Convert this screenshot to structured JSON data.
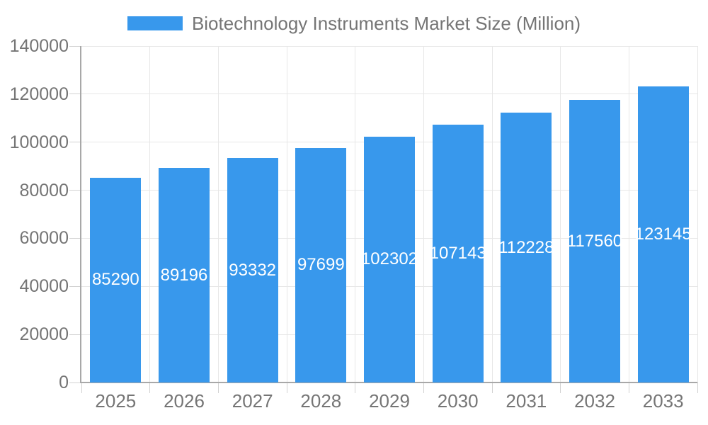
{
  "chart_data": {
    "type": "bar",
    "title": "Biotechnology Instruments Market Size (Million)",
    "legend": {
      "position": "top",
      "entries": [
        "Biotechnology Instruments Market Size (Million)"
      ]
    },
    "categories": [
      "2025",
      "2026",
      "2027",
      "2028",
      "2029",
      "2030",
      "2031",
      "2032",
      "2033"
    ],
    "values": [
      85290,
      89196,
      93332,
      97699,
      102302,
      107143,
      112228,
      117560,
      123145
    ],
    "xlabel": "",
    "ylabel": "",
    "ylim": [
      0,
      140000
    ],
    "yticks": [
      0,
      20000,
      40000,
      60000,
      80000,
      100000,
      120000,
      140000
    ],
    "grid": true,
    "data_labels": "inside-center-white",
    "colors": {
      "bar": "#3898EC",
      "grid": "#E7E7E7",
      "axis": "#A8A8A8",
      "tick_mark": "#D2D2D2",
      "tick_text": "#757575",
      "bar_label": "#FFFFFF",
      "background": "#FFFFFF"
    }
  }
}
